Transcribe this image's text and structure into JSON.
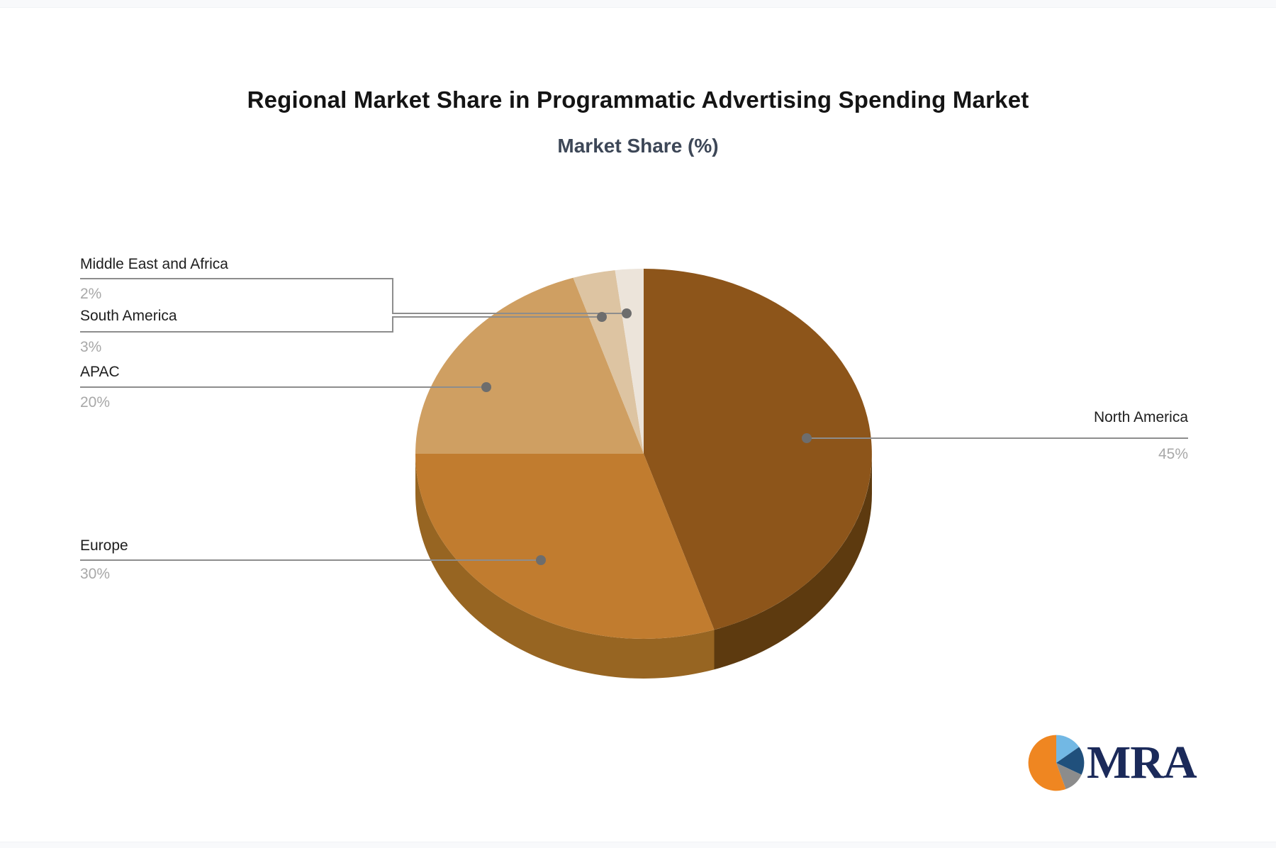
{
  "header": {
    "title": "Regional Market Share in Programmatic Advertising Spending Market",
    "subtitle": "Market Share (%)"
  },
  "chart_data": {
    "type": "pie",
    "style": "3d",
    "title": "Regional Market Share in Programmatic Advertising Spending Market",
    "subtitle": "Market Share (%)",
    "unit": "%",
    "direction": "clockwise",
    "start_angle_deg": 0,
    "legend_position": "external-callout-labels",
    "slices": [
      {
        "label": "North America",
        "value": 45,
        "display": "45%",
        "color": "#8d551a",
        "side_color": "#5d3a0f"
      },
      {
        "label": "Europe",
        "value": 30,
        "display": "30%",
        "color": "#c17c2f",
        "side_color": "#976522"
      },
      {
        "label": "APAC",
        "value": 20,
        "display": "20%",
        "color": "#cf9f62",
        "side_color": "#9a7648"
      },
      {
        "label": "South America",
        "value": 3,
        "display": "3%",
        "color": "#ddc4a2",
        "side_color": "#a89478"
      },
      {
        "label": "Middle East and Africa",
        "value": 2,
        "display": "2%",
        "color": "#ece4da",
        "side_color": "#b3aca0"
      }
    ]
  },
  "logo": {
    "text": "MRA",
    "colors": {
      "orange": "#ef8621",
      "light_blue": "#72b8e4",
      "navy": "#20507c",
      "gray": "#8c8c8c",
      "text": "#1b2a5a"
    }
  },
  "colors": {
    "background": "#ffffff",
    "title": "#141414",
    "subtitle": "#3d4757",
    "label_text": "#1e1e1e",
    "percent_text": "#a8a8a8",
    "leader_line": "#8d8d8d",
    "leader_dot": "#6d6d6d"
  }
}
